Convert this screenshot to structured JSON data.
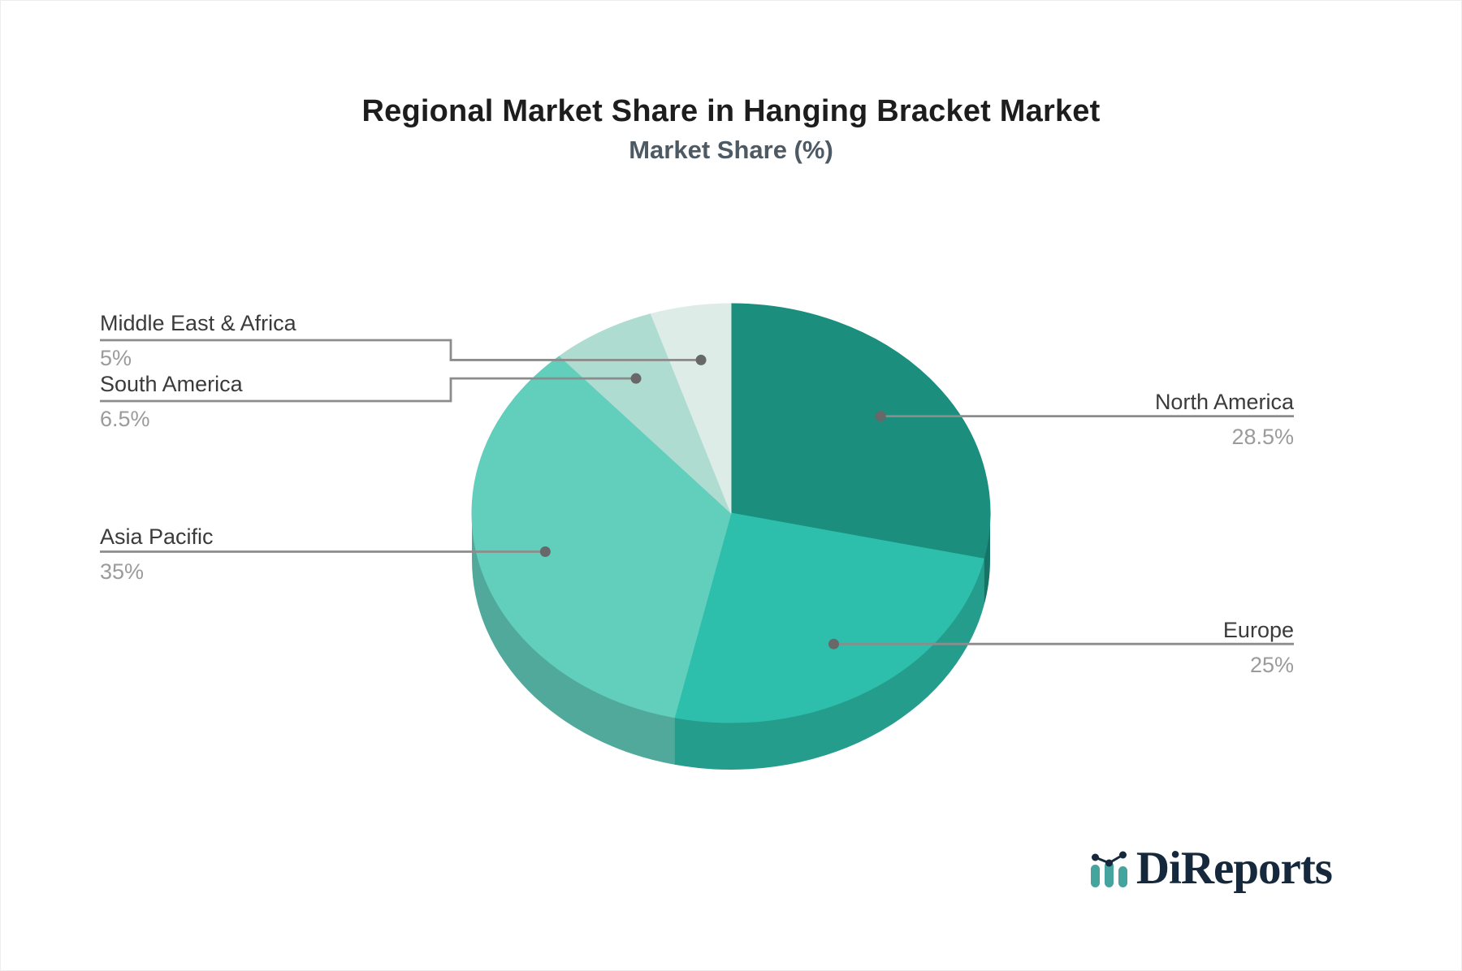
{
  "chart_data": {
    "type": "pie",
    "style": "3d-pie",
    "title": "Regional Market Share in Hanging Bracket Market",
    "subtitle": "Market Share (%)",
    "unit": "%",
    "start_angle": "12-oclock",
    "direction": "clockwise",
    "legend_position": "callout-labels",
    "series": [
      {
        "name": "North America",
        "value": 28.5,
        "display": "28.5%",
        "color": "#1b8e7e"
      },
      {
        "name": "Europe",
        "value": 25,
        "display": "25%",
        "color": "#2dbfac"
      },
      {
        "name": "Asia Pacific",
        "value": 35,
        "display": "35%",
        "color": "#62cebc"
      },
      {
        "name": "South America",
        "value": 6.5,
        "display": "6.5%",
        "color": "#aedcd1"
      },
      {
        "name": "Middle East & Africa",
        "value": 5,
        "display": "5%",
        "color": "#ddece7"
      }
    ],
    "callout_line_color": "#8c8c8c",
    "callout_dot_color": "#686868",
    "label_color": "#3b3b3b",
    "value_color": "#9b9b9b"
  },
  "logo": {
    "text": "DiReports",
    "icon": "bar-line-chart-icon",
    "text_color": "#16283c",
    "accent_color": "#46a49e"
  }
}
